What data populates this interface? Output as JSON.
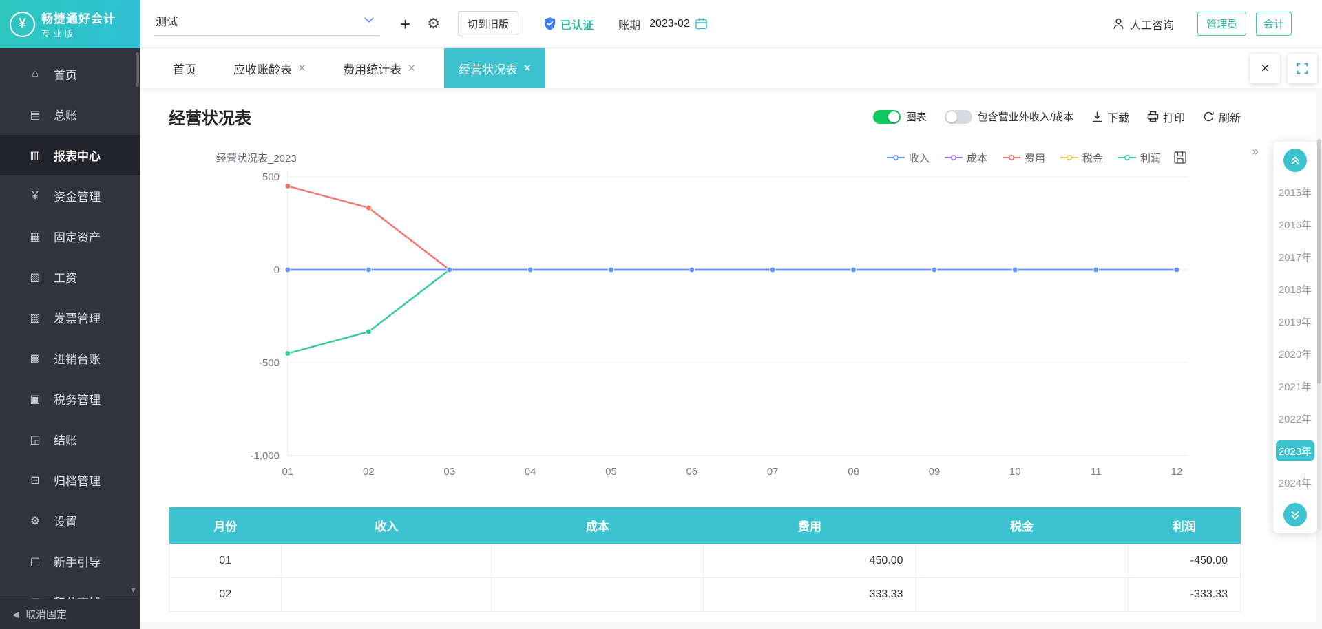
{
  "brand": {
    "name": "畅捷通好会计",
    "edition": "专业版"
  },
  "topbar": {
    "account_set_value": "测试",
    "switch_version_label": "切到旧版",
    "certified_label": "已认证",
    "period_label": "账期",
    "period_value": "2023-02",
    "consult_label": "人工咨询",
    "admin_label": "管理员",
    "role_label": "会计"
  },
  "icons": {
    "plus": "+",
    "gear": "⚙",
    "close": "×",
    "collapse_handle": "»",
    "scroll_down": "▼",
    "unpin": "◀"
  },
  "sidebar": {
    "items": [
      {
        "id": "home",
        "label": "首页",
        "icon": "home-icon",
        "glyph": "⌂",
        "active": false
      },
      {
        "id": "general-ledger",
        "label": "总账",
        "icon": "ledger-icon",
        "glyph": "▤",
        "active": false
      },
      {
        "id": "report-center",
        "label": "报表中心",
        "icon": "report-center-icon",
        "glyph": "▥",
        "active": true
      },
      {
        "id": "funds",
        "label": "资金管理",
        "icon": "funds-icon",
        "glyph": "¥",
        "active": false
      },
      {
        "id": "fixed-assets",
        "label": "固定资产",
        "icon": "fixed-assets-icon",
        "glyph": "▦",
        "active": false
      },
      {
        "id": "payroll",
        "label": "工资",
        "icon": "payroll-icon",
        "glyph": "▧",
        "active": false
      },
      {
        "id": "invoice",
        "label": "发票管理",
        "icon": "invoice-icon",
        "glyph": "▨",
        "active": false
      },
      {
        "id": "purchase-sales",
        "label": "进销台账",
        "icon": "purchase-sales-icon",
        "glyph": "▩",
        "active": false
      },
      {
        "id": "tax",
        "label": "税务管理",
        "icon": "tax-icon",
        "glyph": "▣",
        "active": false
      },
      {
        "id": "closing",
        "label": "结账",
        "icon": "closing-icon",
        "glyph": "◲",
        "active": false
      },
      {
        "id": "archive",
        "label": "归档管理",
        "icon": "archive-icon",
        "glyph": "⊟",
        "active": false
      },
      {
        "id": "settings",
        "label": "设置",
        "icon": "settings-icon",
        "glyph": "⚙",
        "active": false
      },
      {
        "id": "beginner-guide",
        "label": "新手引导",
        "icon": "guide-icon",
        "glyph": "▢",
        "active": false
      },
      {
        "id": "points-mall",
        "label": "积分商城",
        "icon": "mall-icon",
        "glyph": "⊞",
        "active": false
      }
    ],
    "unpin_label": "取消固定"
  },
  "tabs": [
    {
      "label": "首页",
      "closable": false,
      "active": false
    },
    {
      "label": "应收账龄表",
      "closable": true,
      "active": false
    },
    {
      "label": "费用统计表",
      "closable": true,
      "active": false
    },
    {
      "label": "经营状况表",
      "closable": true,
      "active": true
    }
  ],
  "page": {
    "title": "经营状况表",
    "chart_toggle": {
      "label": "图表",
      "on": true
    },
    "nonop_toggle": {
      "label": "包含营业外收入/成本",
      "on": false
    },
    "download_label": "下载",
    "print_label": "打印",
    "refresh_label": "刷新"
  },
  "chart_data": {
    "type": "line",
    "title": "经营状况表_2023",
    "x_categories": [
      "01",
      "02",
      "03",
      "04",
      "05",
      "06",
      "07",
      "08",
      "09",
      "10",
      "11",
      "12"
    ],
    "ylim": [
      -1000,
      500
    ],
    "yticks": [
      {
        "v": 500,
        "label": "500"
      },
      {
        "v": 0,
        "label": "0"
      },
      {
        "v": -500,
        "label": "-500"
      },
      {
        "v": -1000,
        "label": "-1,000"
      }
    ],
    "grid": true,
    "legend_position": "top-right",
    "series": [
      {
        "name": "收入",
        "color": "#6398f7",
        "values": [
          0,
          0,
          0,
          0,
          0,
          0,
          0,
          0,
          0,
          0,
          0,
          0
        ]
      },
      {
        "name": "成本",
        "color": "#a66ce8",
        "values": [
          0,
          0,
          0,
          0,
          0,
          0,
          0,
          0,
          0,
          0,
          0,
          0
        ]
      },
      {
        "name": "费用",
        "color": "#f4756e",
        "values": [
          450,
          333.33,
          0,
          0,
          0,
          0,
          0,
          0,
          0,
          0,
          0,
          0
        ]
      },
      {
        "name": "税金",
        "color": "#f0c84c",
        "values": [
          0,
          0,
          0,
          0,
          0,
          0,
          0,
          0,
          0,
          0,
          0,
          0
        ]
      },
      {
        "name": "利润",
        "color": "#33c9a2",
        "values": [
          -450,
          -333.33,
          0,
          0,
          0,
          0,
          0,
          0,
          0,
          0,
          0,
          0
        ]
      }
    ]
  },
  "table": {
    "headers": [
      "月份",
      "收入",
      "成本",
      "费用",
      "税金",
      "利润"
    ],
    "rows": [
      [
        "01",
        "",
        "",
        "450.00",
        "",
        "-450.00"
      ],
      [
        "02",
        "",
        "",
        "333.33",
        "",
        "-333.33"
      ]
    ]
  },
  "year_panel": {
    "years": [
      "2015年",
      "2016年",
      "2017年",
      "2018年",
      "2019年",
      "2020年",
      "2021年",
      "2022年",
      "2023年",
      "2024年"
    ],
    "selected": "2023年"
  },
  "colors": {
    "brand_teal": "#3cc3cf",
    "sidebar_bg": "#32333d",
    "toggle_on_green": "#0fc860",
    "table_header_bg": "#3cc3cf",
    "certified_text": "#28b9a1",
    "shield_blue": "#3d7ef5"
  }
}
